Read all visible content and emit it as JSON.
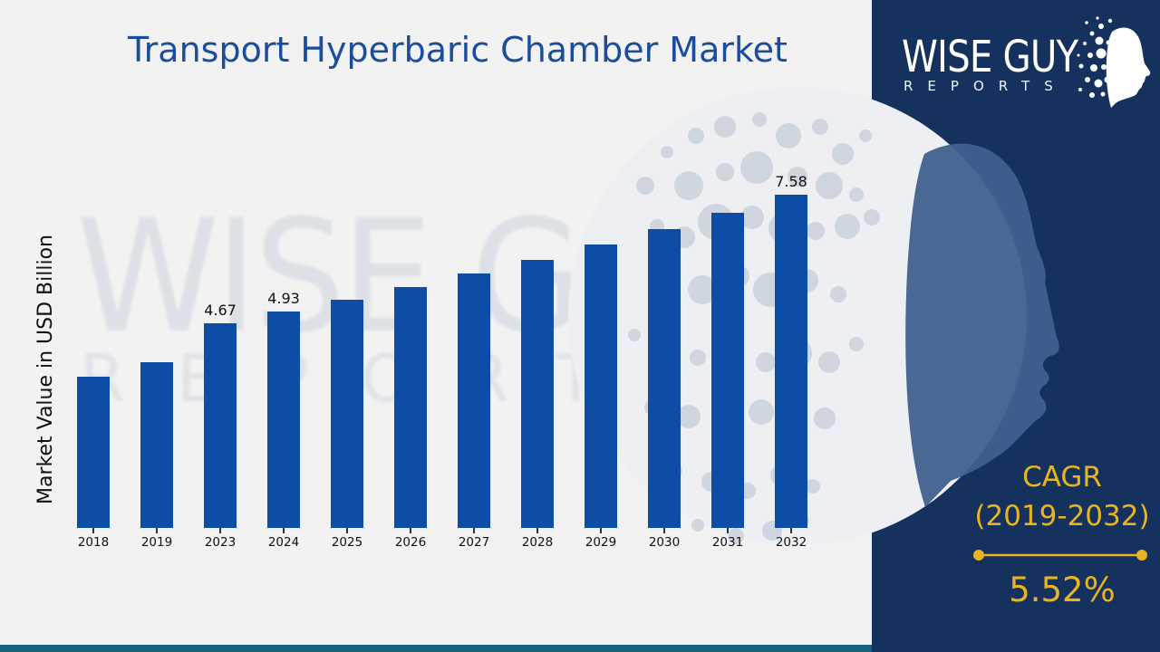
{
  "title": "Transport Hyperbaric Chamber Market",
  "brand": {
    "line1": "WISE GUY",
    "line2": "REPORTS"
  },
  "watermark": {
    "line1": "WISE GUY",
    "line2": "REPORTS"
  },
  "cagr": {
    "label": "CAGR",
    "range": "(2019-2032)",
    "value": "5.52%"
  },
  "chart_data": {
    "type": "bar",
    "title": "Transport Hyperbaric Chamber Market",
    "xlabel": "",
    "ylabel": "Market Value in USD Billion",
    "categories": [
      "2018",
      "2019",
      "2023",
      "2024",
      "2025",
      "2026",
      "2027",
      "2028",
      "2029",
      "2030",
      "2031",
      "2032"
    ],
    "values": [
      3.44,
      3.77,
      4.67,
      4.93,
      5.2,
      5.49,
      5.79,
      6.11,
      6.45,
      6.81,
      7.18,
      7.58
    ],
    "bar_labels": {
      "2023": "4.67",
      "2024": "4.93",
      "2032": "7.58"
    },
    "ylim": [
      0,
      8
    ],
    "grid": false,
    "legend": false,
    "unit": "USD Billion"
  },
  "colors": {
    "background": "#f2f2f3",
    "title_blue": "#1a4d9d",
    "bar_blue": "#0d4da6",
    "navy_panel": "#15315e",
    "gold": "#e9b41e",
    "teal_strip": "#19607f",
    "watermark_gray": "#c9d0da",
    "face_slate": "#41608e",
    "label_black": "#111111"
  }
}
